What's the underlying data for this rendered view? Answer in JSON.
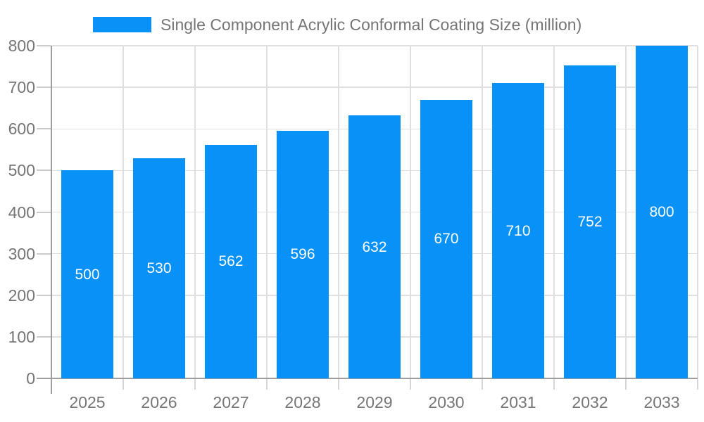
{
  "legend": {
    "swatch_color": "#0891f7",
    "series_label": "Single Component Acrylic Conformal Coating Size (million)"
  },
  "chart_data": {
    "type": "bar",
    "title": "Single Component Acrylic Conformal Coating Size (million)",
    "categories": [
      "2025",
      "2026",
      "2027",
      "2028",
      "2029",
      "2030",
      "2031",
      "2032",
      "2033"
    ],
    "values": [
      500,
      530,
      562,
      596,
      632,
      670,
      710,
      752,
      800
    ],
    "series": [
      {
        "name": "Single Component Acrylic Conformal Coating Size (million)",
        "values": [
          500,
          530,
          562,
          596,
          632,
          670,
          710,
          752,
          800
        ]
      }
    ],
    "xlabel": "",
    "ylabel": "",
    "ylim": [
      0,
      800
    ],
    "yticks": [
      0,
      100,
      200,
      300,
      400,
      500,
      600,
      700,
      800
    ],
    "grid": true,
    "legend_position": "top-left",
    "value_labels_position": "inside-center",
    "colors": {
      "bar": "#0891f7",
      "value_label": "#ffffff",
      "axis_text": "#757575",
      "gridline": "#e0e0e0",
      "axis_line": "#9e9e9e",
      "y_tick": "#cccccc",
      "x_tick": "#d6d6d6",
      "background": "#ffffff"
    }
  }
}
